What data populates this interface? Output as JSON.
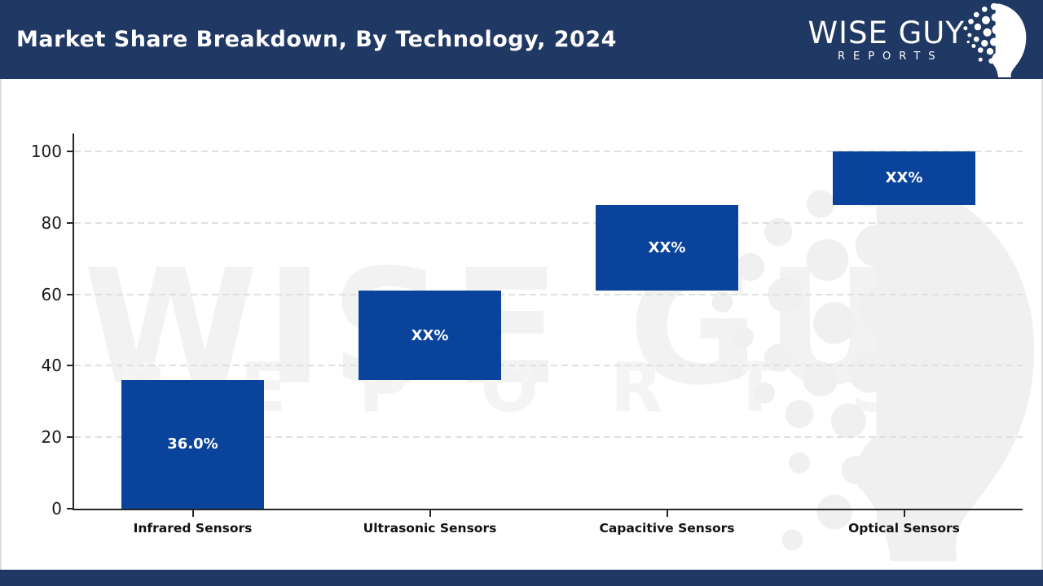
{
  "header": {
    "title": "Market Share Breakdown, By Technology, 2024",
    "bg_color": "#203864",
    "logo": {
      "line1": "WISE GUY",
      "line2": "REPORTS"
    }
  },
  "watermark": {
    "line1": "WISE GUY",
    "line2": "REPORTS"
  },
  "chart_data": {
    "type": "bar",
    "subtype": "floating-waterfall",
    "title": "Market Share Breakdown, By Technology, 2024",
    "categories": [
      "Infrared Sensors",
      "Ultrasonic Sensors",
      "Capacitive Sensors",
      "Optical Sensors"
    ],
    "bars": [
      {
        "category": "Infrared Sensors",
        "start": 0,
        "end": 36,
        "label": "36.0%"
      },
      {
        "category": "Ultrasonic Sensors",
        "start": 36,
        "end": 61,
        "label": "XX%"
      },
      {
        "category": "Capacitive Sensors",
        "start": 61,
        "end": 85,
        "label": "XX%"
      },
      {
        "category": "Optical Sensors",
        "start": 85,
        "end": 100,
        "label": "XX%"
      }
    ],
    "yticks": [
      0,
      20,
      40,
      60,
      80,
      100
    ],
    "ylim": [
      0,
      105
    ],
    "xlabel": "",
    "ylabel": "",
    "bar_color": "#09439b",
    "bar_label_color": "#ffffff",
    "grid": {
      "horizontal": true,
      "style": "dashed",
      "color": "#e0e0e0"
    },
    "legend": "none"
  },
  "footer": {
    "bg_color": "#203864"
  }
}
